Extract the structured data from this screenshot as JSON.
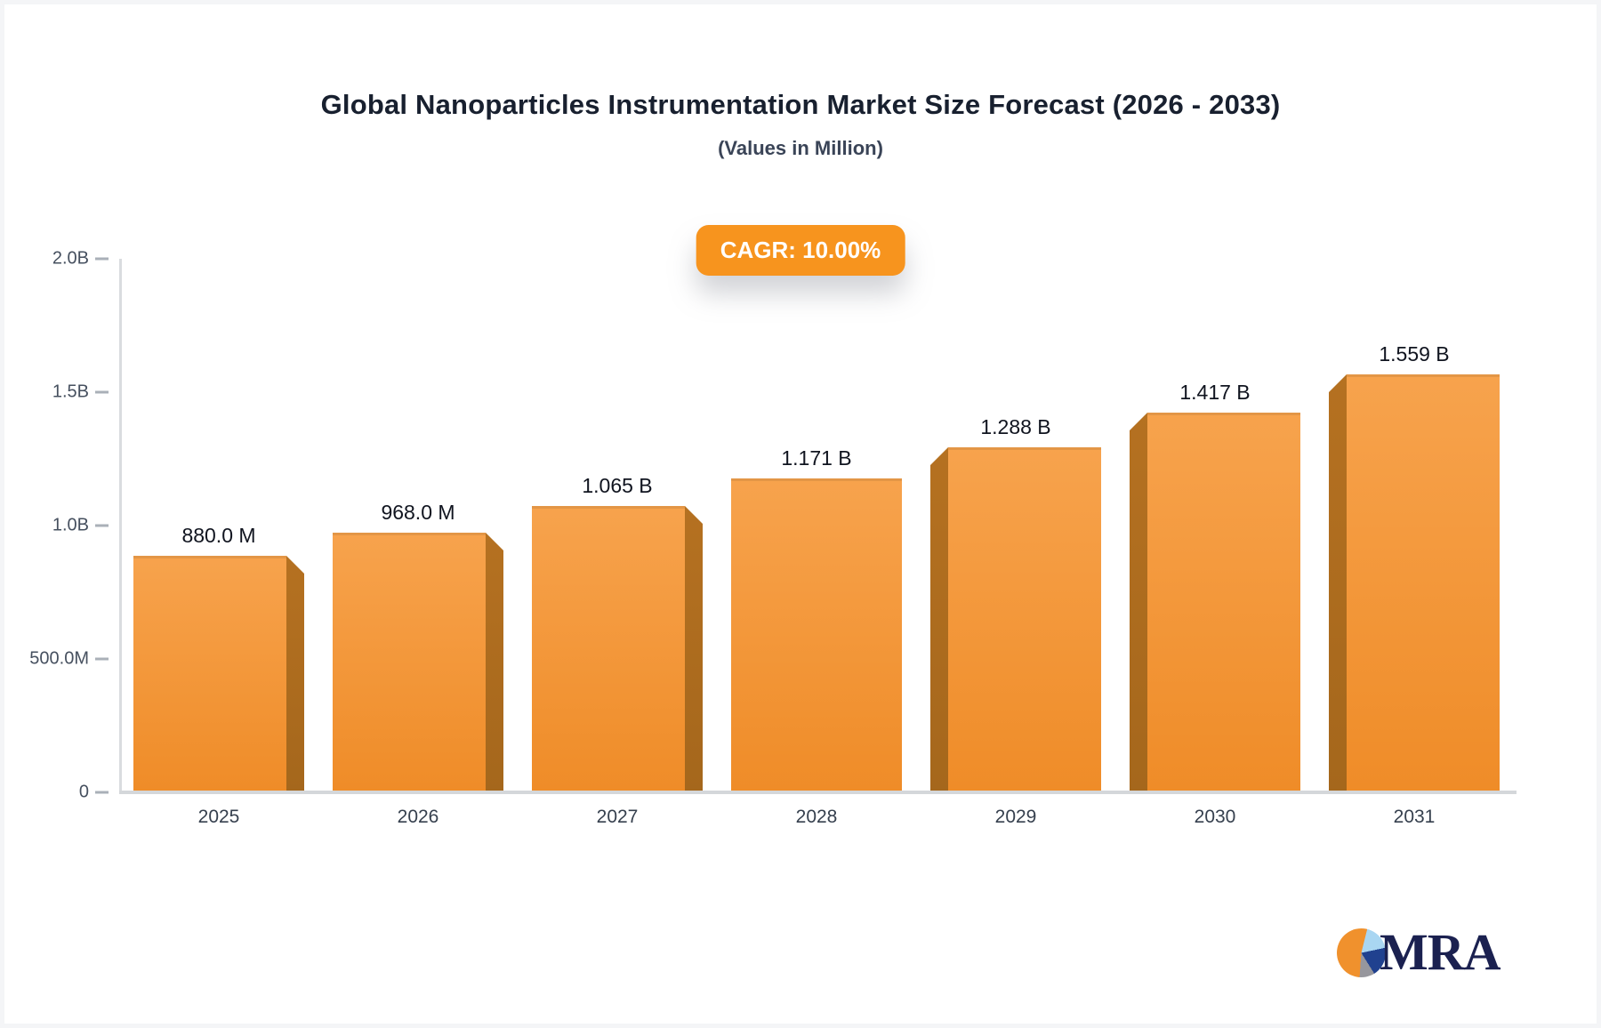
{
  "header": {
    "title": "Global Nanoparticles Instrumentation Market Size Forecast (2026 - 2033)",
    "subtitle": "(Values in Million)"
  },
  "badge": {
    "label": "CAGR: 10.00%",
    "color": "#F7941E",
    "text_color": "#FFFFFF"
  },
  "chart_data": {
    "type": "bar",
    "title": "Global Nanoparticles Instrumentation Market Size Forecast (2026 - 2033)",
    "subtitle": "(Values in Million)",
    "cagr_label": "CAGR: 10.00%",
    "categories": [
      "2025",
      "2026",
      "2027",
      "2028",
      "2029",
      "2030",
      "2031"
    ],
    "values_millions": [
      880,
      968,
      1065,
      1171,
      1288,
      1417,
      1559
    ],
    "bar_labels": [
      "880.0 M",
      "968.0 M",
      "1.065 B",
      "1.171 B",
      "1.288 B",
      "1.417 B",
      "1.559 B"
    ],
    "xlabel": "",
    "ylabel": "",
    "ylim_millions": [
      0,
      2000
    ],
    "ytick_values_millions": [
      2000,
      1500,
      1000,
      500,
      0
    ],
    "ytick_labels": [
      "2.0B",
      "1.5B",
      "1.0B",
      "500.0M",
      "0"
    ],
    "grid": false,
    "legend": "none",
    "colors": {
      "face_top": "#F7A34D",
      "face_bottom": "#EF8C28",
      "side_top": "#B57121",
      "side_bottom": "#A5671C"
    }
  },
  "logo": {
    "text": "MRA",
    "text_color": "#1B2150",
    "pie_colors": {
      "orange": "#F0912D",
      "light_blue": "#A9D6F2",
      "navy": "#20418F",
      "gray": "#97979D"
    }
  }
}
